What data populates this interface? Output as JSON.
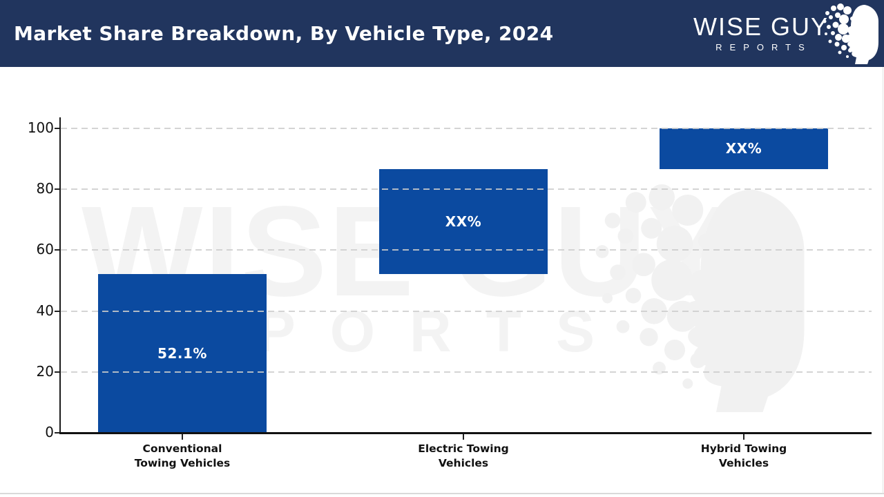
{
  "header": {
    "title": "Market Share Breakdown, By Vehicle Type, 2024",
    "logo": {
      "brand": "WISE GUY",
      "sub": "REPORTS"
    }
  },
  "watermark": {
    "brand": "WISE GUY",
    "sub": "REPORTS"
  },
  "chart_data": {
    "type": "bar",
    "subtype": "waterfall",
    "title": "Market Share Breakdown, By Vehicle Type, 2024",
    "unit": "%",
    "categories": [
      "Conventional Towing Vehicles",
      "Electric Towing Vehicles",
      "Hybrid Towing Vehicles"
    ],
    "bars": [
      {
        "category_lines": [
          "Conventional",
          "Towing Vehicles"
        ],
        "start": 0,
        "end": 52.1,
        "label": "52.1%"
      },
      {
        "category_lines": [
          "Electric Towing",
          "Vehicles"
        ],
        "start": 52.1,
        "end": 86.7,
        "label": "XX%"
      },
      {
        "category_lines": [
          "Hybrid Towing",
          "Vehicles"
        ],
        "start": 86.7,
        "end": 100,
        "label": "XX%"
      }
    ],
    "yticks": [
      0,
      20,
      40,
      60,
      80,
      100
    ],
    "ylim": [
      0,
      103.6
    ],
    "grid": "horizontal-dashed",
    "legend": "none",
    "xlabel": "",
    "ylabel": "",
    "colors": {
      "bar": "#0B4AA0",
      "bar_label": "#FFFFFF",
      "grid": "#D4D4D4",
      "axis": "#1A1A1A",
      "tick_label": "#111111",
      "header_bg": "#21355E",
      "watermark": "#F3F3F3"
    }
  }
}
